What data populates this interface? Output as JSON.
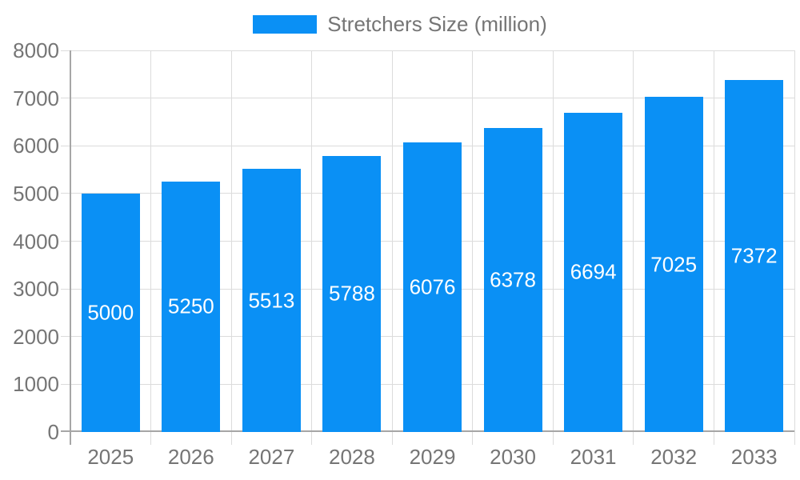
{
  "legend": {
    "label": "Stretchers Size (million)"
  },
  "chart_data": {
    "type": "bar",
    "title": "Stretchers Size (million)",
    "xlabel": "",
    "ylabel": "",
    "categories": [
      "2025",
      "2026",
      "2027",
      "2028",
      "2029",
      "2030",
      "2031",
      "2032",
      "2033"
    ],
    "values": [
      5000,
      5250,
      5513,
      5788,
      6076,
      6378,
      6694,
      7025,
      7372
    ],
    "value_labels": [
      "5000",
      "5250",
      "5513",
      "5788",
      "6076",
      "6378",
      "6694",
      "7025",
      "7372"
    ],
    "ylim": [
      0,
      8000
    ],
    "ytick_step": 1000,
    "ytick_labels": [
      "0",
      "1000",
      "2000",
      "3000",
      "4000",
      "5000",
      "6000",
      "7000",
      "8000"
    ],
    "grid": true,
    "legend_position": "top-center",
    "colors": {
      "bar": "#0a90f5",
      "grid": "#dcdcdc",
      "axis": "#a6a6a6",
      "text": "#757575",
      "value_label": "#ffffff",
      "background": "#ffffff"
    }
  }
}
